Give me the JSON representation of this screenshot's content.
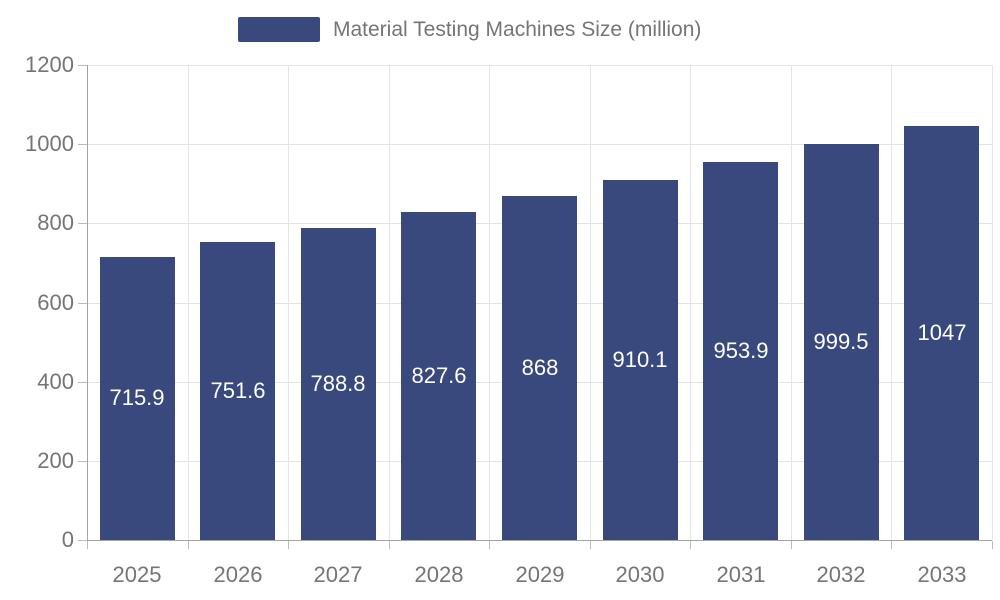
{
  "legend": {
    "label": "Material Testing Machines Size (million)"
  },
  "chart_data": {
    "type": "bar",
    "title": "Material Testing Machines Size (million)",
    "series_name": "Material Testing Machines Size (million)",
    "categories": [
      "2025",
      "2026",
      "2027",
      "2028",
      "2029",
      "2030",
      "2031",
      "2032",
      "2033"
    ],
    "values": [
      715.9,
      751.6,
      788.8,
      827.6,
      868,
      910.1,
      953.9,
      999.5,
      1047
    ],
    "value_labels": [
      "715.9",
      "751.6",
      "788.8",
      "827.6",
      "868",
      "910.1",
      "953.9",
      "999.5",
      "1047"
    ],
    "xlabel": "",
    "ylabel": "",
    "ylim": [
      0,
      1200
    ],
    "ytick_step": 200,
    "ytick_labels": [
      "0",
      "200",
      "400",
      "600",
      "800",
      "1000",
      "1200"
    ],
    "grid": true,
    "legend_position": "top",
    "colors": {
      "bar": "#39497D",
      "value_label": "#FFFFFF",
      "axis_text": "#757575",
      "grid_line": "#E4E4E4",
      "axis_line": "#A3A3A3",
      "tick_mark": "#BBBBBB",
      "background": "#FFFFFF"
    }
  }
}
